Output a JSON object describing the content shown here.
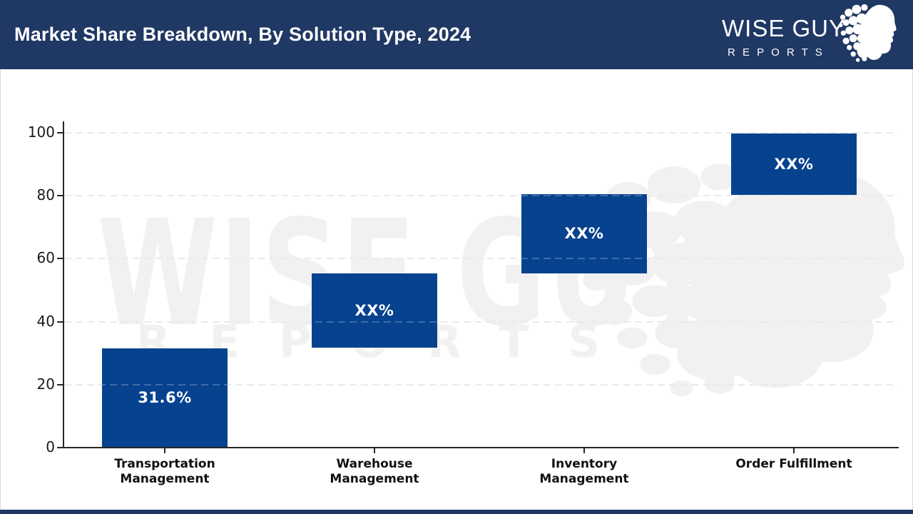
{
  "header": {
    "title": "Market Share Breakdown, By Solution Type, 2024",
    "logo": {
      "line1": "WISE GUY",
      "line2": "R E P O R T S"
    }
  },
  "watermark": {
    "line1": "WISE GUY",
    "line2": "REPORTS"
  },
  "colors": {
    "header_navy": "#1f3864",
    "bar_blue": "#07428f",
    "axis_black": "#262626",
    "grid_gray": "#e4e4e4",
    "watermark_gray": "#f1f1f1",
    "bar_label_white": "#ffffff"
  },
  "chart_data": {
    "type": "bar",
    "subtype": "waterfall",
    "title": "Market Share Breakdown, By Solution Type, 2024",
    "categories": [
      "Transportation Management",
      "Warehouse Management",
      "Inventory Management",
      "Order Fulfillment"
    ],
    "category_lines": [
      [
        "Transportation",
        "Management"
      ],
      [
        "Warehouse",
        "Management"
      ],
      [
        "Inventory",
        "Management"
      ],
      [
        "Order Fulfillment"
      ]
    ],
    "segments": [
      {
        "category": "Transportation Management",
        "start": 0,
        "end": 31.6,
        "label": "31.6%"
      },
      {
        "category": "Warehouse Management",
        "start": 31.7,
        "end": 55.4,
        "label": "XX%"
      },
      {
        "category": "Inventory Management",
        "start": 55.4,
        "end": 80.5,
        "label": "XX%"
      },
      {
        "category": "Order Fulfillment",
        "start": 80.3,
        "end": 99.8,
        "label": "XX%"
      }
    ],
    "yticks": [
      0,
      20,
      40,
      60,
      80,
      100
    ],
    "ylim": [
      0,
      105
    ],
    "xlabel": "",
    "ylabel": "",
    "grid": true,
    "grid_style": "dashed",
    "legend": "none"
  }
}
